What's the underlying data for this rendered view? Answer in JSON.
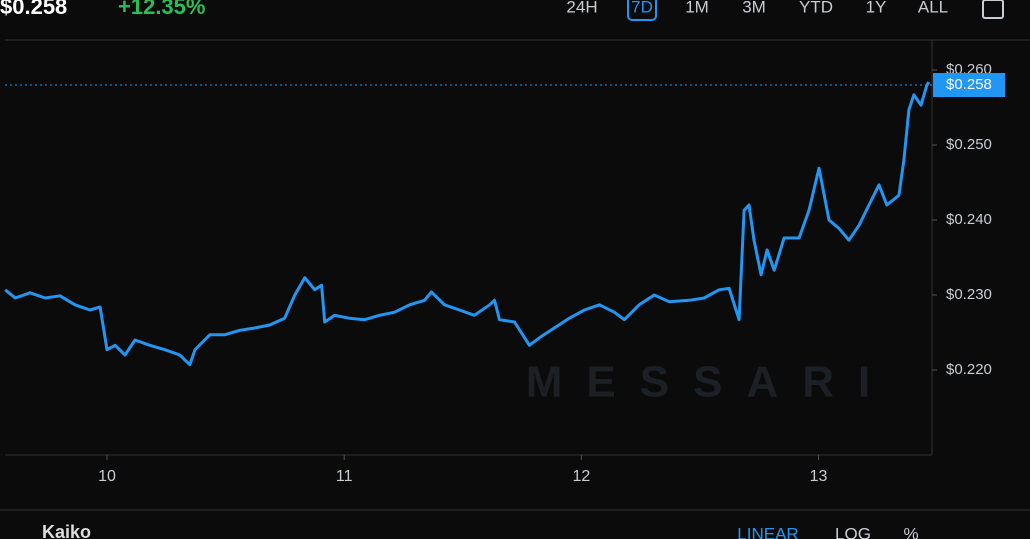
{
  "header": {
    "price": "$0.258",
    "change": "+12.35%",
    "timeframes": [
      "24H",
      "7D",
      "1M",
      "3M",
      "YTD",
      "1Y",
      "ALL"
    ],
    "active_timeframe": "7D"
  },
  "chart_data": {
    "type": "line",
    "watermark": "MESSARI",
    "grid": false,
    "x": [
      9.571,
      9.613,
      9.676,
      9.739,
      9.802,
      9.865,
      9.928,
      9.971,
      10.0,
      10.034,
      10.076,
      10.118,
      10.181,
      10.244,
      10.307,
      10.349,
      10.371,
      10.434,
      10.497,
      10.56,
      10.623,
      10.686,
      10.749,
      10.792,
      10.834,
      10.876,
      10.905,
      10.918,
      10.96,
      11.023,
      11.086,
      11.149,
      11.213,
      11.276,
      11.339,
      11.368,
      11.423,
      11.486,
      11.549,
      11.613,
      11.634,
      11.655,
      11.718,
      11.781,
      11.823,
      11.886,
      11.949,
      12.013,
      12.076,
      12.139,
      12.181,
      12.244,
      12.307,
      12.371,
      12.455,
      12.518,
      12.581,
      12.623,
      12.665,
      12.686,
      12.707,
      12.728,
      12.758,
      12.783,
      12.813,
      12.855,
      12.918,
      12.96,
      13.002,
      13.044,
      13.086,
      13.128,
      13.171,
      13.213,
      13.255,
      13.288,
      13.339,
      13.36,
      13.381,
      13.402,
      13.432,
      13.457,
      13.465
    ],
    "series": [
      {
        "color": "#2196f3",
        "values": [
          0.2307,
          0.2296,
          0.2303,
          0.2296,
          0.2299,
          0.2287,
          0.228,
          0.2284,
          0.2227,
          0.2233,
          0.222,
          0.224,
          0.2233,
          0.2227,
          0.222,
          0.2207,
          0.2227,
          0.2247,
          0.2247,
          0.2253,
          0.2256,
          0.226,
          0.2269,
          0.23,
          0.2323,
          0.2307,
          0.2313,
          0.2264,
          0.2273,
          0.2269,
          0.2267,
          0.2273,
          0.2277,
          0.2287,
          0.2293,
          0.2304,
          0.2287,
          0.228,
          0.2273,
          0.2287,
          0.2293,
          0.2267,
          0.2264,
          0.2233,
          0.2243,
          0.2256,
          0.2269,
          0.228,
          0.2287,
          0.2277,
          0.2267,
          0.2287,
          0.23,
          0.2291,
          0.2293,
          0.2296,
          0.2307,
          0.2309,
          0.2267,
          0.2413,
          0.242,
          0.2373,
          0.2327,
          0.236,
          0.2333,
          0.2376,
          0.2376,
          0.2413,
          0.2469,
          0.24,
          0.2389,
          0.2373,
          0.2393,
          0.242,
          0.2447,
          0.242,
          0.2433,
          0.248,
          0.2547,
          0.2567,
          0.2553,
          0.258,
          0.2584
        ]
      }
    ],
    "xlim": [
      9.57,
      13.47
    ],
    "xticks": [
      10,
      11,
      12,
      13
    ],
    "ylim": [
      0.208,
      0.264
    ],
    "yticks": [
      {
        "value": 0.22,
        "label": "$0.220"
      },
      {
        "value": 0.23,
        "label": "$0.230"
      },
      {
        "value": 0.24,
        "label": "$0.240"
      },
      {
        "value": 0.25,
        "label": "$0.250"
      },
      {
        "value": 0.26,
        "label": "$0.260"
      }
    ],
    "last_price": {
      "value": 0.258,
      "label": "$0.258"
    }
  },
  "footer": {
    "source": "Kaiko",
    "scales": [
      "LINEAR",
      "LOG",
      "%"
    ]
  }
}
